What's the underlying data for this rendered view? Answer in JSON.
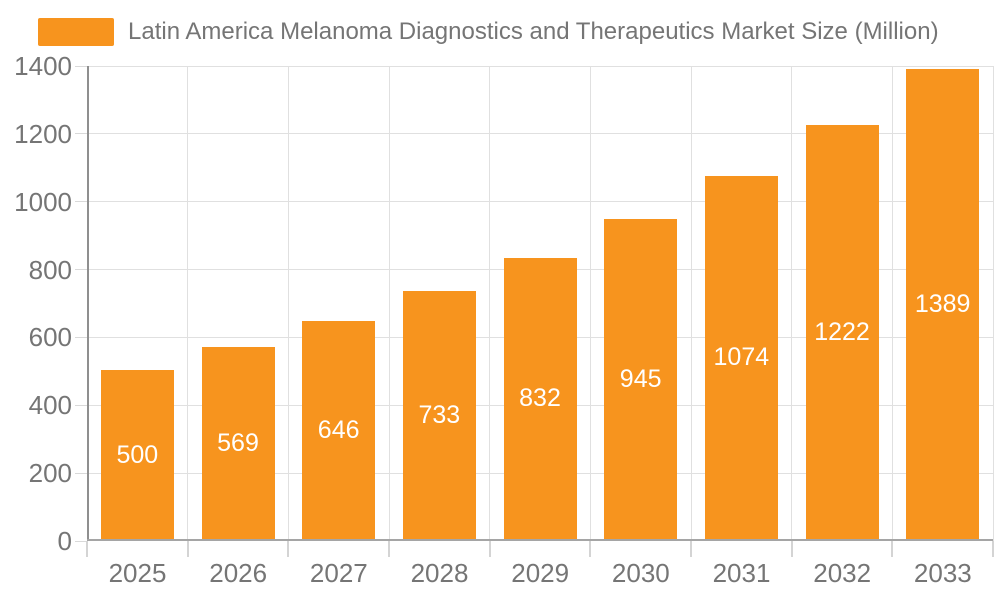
{
  "legend": {
    "label": "Latin America Melanoma Diagnostics and Therapeutics Market Size (Million)",
    "swatch_color": "#F7941E"
  },
  "chart_data": {
    "type": "bar",
    "title": "Latin America Melanoma Diagnostics and Therapeutics Market Size (Million)",
    "categories": [
      "2025",
      "2026",
      "2027",
      "2028",
      "2029",
      "2030",
      "2031",
      "2032",
      "2033"
    ],
    "values": [
      500,
      569,
      646,
      733,
      832,
      945,
      1074,
      1222,
      1389
    ],
    "yticks": [
      0,
      200,
      400,
      600,
      800,
      1000,
      1200,
      1400
    ],
    "ylim": [
      0,
      1400
    ],
    "xlabel": "",
    "ylabel": "",
    "grid": true,
    "legend_position": "top-left",
    "bar_color": "#F7941E",
    "bar_label_color": "#FFFFFF",
    "axis_label_color": "#757575",
    "grid_color": "#E0E0E0",
    "axis_line_color": "#999999"
  }
}
